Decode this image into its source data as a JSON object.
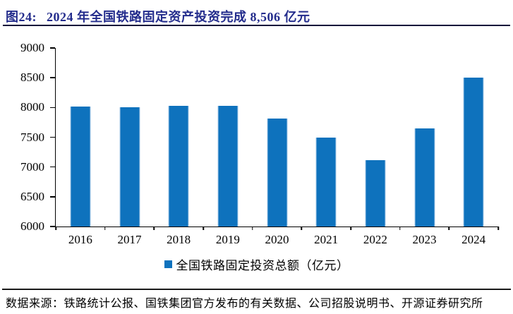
{
  "header": {
    "figure_label": "图24:",
    "title": "2024 年全国铁路固定资产投资完成 8,506 亿元"
  },
  "chart_data": {
    "type": "bar",
    "title": "2024 年全国铁路固定资产投资完成 8,506 亿元",
    "categories": [
      "2016",
      "2017",
      "2018",
      "2019",
      "2020",
      "2021",
      "2022",
      "2023",
      "2024"
    ],
    "series": [
      {
        "name": "全国铁路固定投资总额（亿元）",
        "color": "#0e72bd",
        "values": [
          8015,
          8010,
          8028,
          8029,
          7819,
          7489,
          7109,
          7645,
          8506
        ]
      }
    ],
    "ylim": [
      6000,
      9000
    ],
    "yticks": [
      6000,
      6500,
      7000,
      7500,
      8000,
      8500,
      9000
    ],
    "grid": false,
    "legend_position": "bottom-center"
  },
  "legend": {
    "label": "全国铁路固定投资总额（亿元）"
  },
  "footer": {
    "source": "数据来源：铁路统计公报、国铁集团官方发布的有关数据、公司招股说明书、开源证券研究所"
  },
  "colors": {
    "title": "#232c8c",
    "bar": "#0e72bd",
    "axis": "#000000"
  }
}
